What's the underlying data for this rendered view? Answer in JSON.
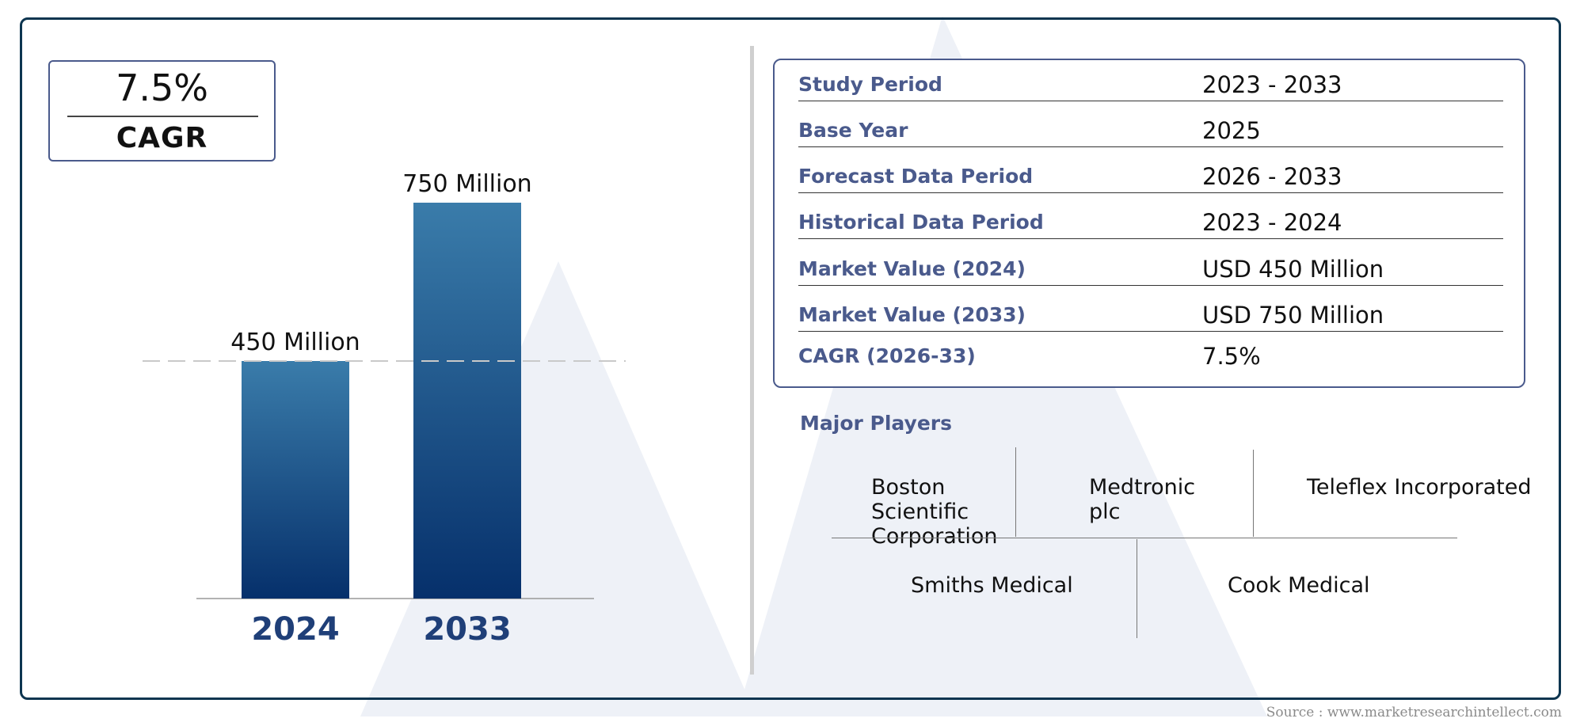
{
  "cagr": {
    "value": "7.5%",
    "label": "CAGR"
  },
  "chart_data": {
    "type": "bar",
    "categories": [
      "2024",
      "2033"
    ],
    "values": [
      450,
      750
    ],
    "data_labels": [
      "450 Million",
      "750 Million"
    ],
    "unit": "Million",
    "ylim": [
      0,
      750
    ],
    "grid": false,
    "reference_line": 450,
    "colors": {
      "bar_top": "#3a7caa",
      "bar_bottom": "#06306b",
      "category_label": "#1f3f78"
    }
  },
  "details": [
    {
      "label": "Study Period",
      "value": "2023 - 2033"
    },
    {
      "label": "Base Year",
      "value": "2025"
    },
    {
      "label": "Forecast Data Period",
      "value": "2026 - 2033"
    },
    {
      "label": "Historical Data Period",
      "value": "2023 - 2024"
    },
    {
      "label": "Market Value (2024)",
      "value": "USD 450 Million"
    },
    {
      "label": "Market Value (2033)",
      "value": "USD 750 Million"
    },
    {
      "label": "CAGR (2026-33)",
      "value": "7.5%"
    }
  ],
  "players": {
    "title": "Major Players",
    "items": [
      "Boston Scientific Corporation",
      "Medtronic plc",
      "Teleflex Incorporated",
      "Smiths Medical",
      "Cook Medical"
    ]
  },
  "source": "Source : www.marketresearchintellect.com",
  "colors": {
    "frame": "#0d3550",
    "accent": "#4a5a8c",
    "watermark": "#eef1f7"
  }
}
